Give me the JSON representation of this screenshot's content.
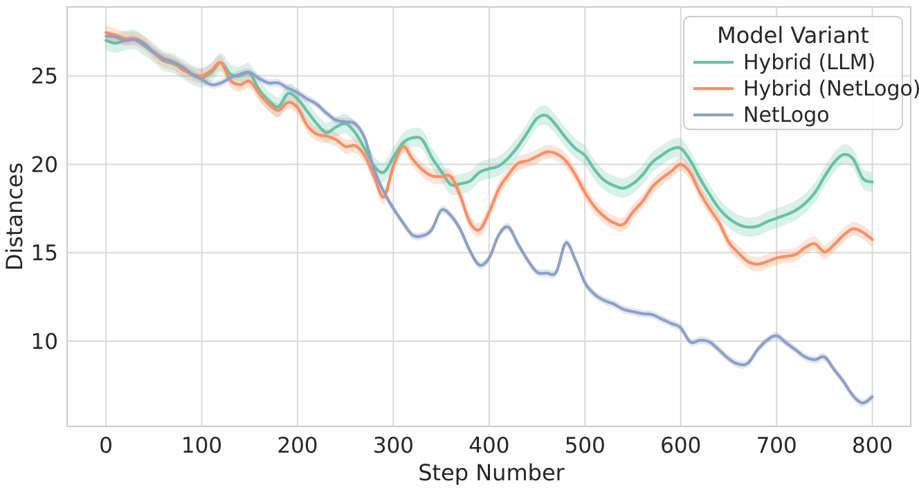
{
  "chart_data": {
    "type": "line",
    "title": "",
    "xlabel": "Step Number",
    "ylabel": "Distances",
    "grid": true,
    "legend": {
      "title": "Model Variant",
      "position": "upper right"
    },
    "x_ticks": [
      0,
      100,
      200,
      300,
      400,
      500,
      600,
      700,
      800
    ],
    "y_ticks": [
      10,
      15,
      20,
      25
    ],
    "xlim": [
      -40.5,
      840
    ],
    "ylim": [
      5.18,
      28.9
    ],
    "x": [
      0,
      10,
      20,
      30,
      40,
      50,
      60,
      70,
      80,
      90,
      100,
      110,
      120,
      130,
      140,
      150,
      160,
      170,
      180,
      190,
      200,
      210,
      220,
      230,
      240,
      250,
      260,
      270,
      280,
      290,
      300,
      310,
      320,
      330,
      340,
      350,
      360,
      370,
      380,
      390,
      400,
      410,
      420,
      430,
      440,
      450,
      460,
      470,
      480,
      490,
      500,
      510,
      520,
      530,
      540,
      550,
      560,
      570,
      580,
      590,
      600,
      610,
      620,
      630,
      640,
      650,
      660,
      670,
      680,
      690,
      700,
      710,
      720,
      730,
      740,
      750,
      760,
      770,
      780,
      790,
      800
    ],
    "series": [
      {
        "name": "Hybrid (LLM)",
        "color": "#66c2a5",
        "band_halfwidth": 0.55,
        "values": [
          27.0,
          26.85,
          27.0,
          27.05,
          26.7,
          26.3,
          25.85,
          25.7,
          25.4,
          25.05,
          24.9,
          25.2,
          25.75,
          25.1,
          25.0,
          25.15,
          24.2,
          23.6,
          23.25,
          24.0,
          23.7,
          23.0,
          22.3,
          21.8,
          22.1,
          22.3,
          21.8,
          20.9,
          19.9,
          19.55,
          20.4,
          21.2,
          21.5,
          21.4,
          20.4,
          19.6,
          18.85,
          18.9,
          19.05,
          19.55,
          19.75,
          19.9,
          20.35,
          21.0,
          21.8,
          22.6,
          22.75,
          22.2,
          21.5,
          20.9,
          20.5,
          19.7,
          19.1,
          18.8,
          18.65,
          18.9,
          19.4,
          20.1,
          20.5,
          20.85,
          20.9,
          20.2,
          19.2,
          18.3,
          17.5,
          16.95,
          16.6,
          16.45,
          16.5,
          16.75,
          16.95,
          17.15,
          17.4,
          17.8,
          18.4,
          19.3,
          20.1,
          20.55,
          20.3,
          19.2,
          19.0
        ]
      },
      {
        "name": "Hybrid (NetLogo)",
        "color": "#fc8d62",
        "band_halfwidth": 0.4,
        "values": [
          27.45,
          27.3,
          27.1,
          27.1,
          26.85,
          26.3,
          25.9,
          25.75,
          25.35,
          25.1,
          25.0,
          25.3,
          25.75,
          24.75,
          24.5,
          24.7,
          24.0,
          23.4,
          23.05,
          23.5,
          23.2,
          22.2,
          21.7,
          21.6,
          21.4,
          21.0,
          21.05,
          20.5,
          19.3,
          18.15,
          19.9,
          21.0,
          20.3,
          19.7,
          19.35,
          19.3,
          19.3,
          18.2,
          16.7,
          16.3,
          17.3,
          18.6,
          19.4,
          20.05,
          20.2,
          20.45,
          20.7,
          20.6,
          20.2,
          19.4,
          18.4,
          17.6,
          17.05,
          16.7,
          16.6,
          17.3,
          17.9,
          18.7,
          19.2,
          19.6,
          20.0,
          19.5,
          18.4,
          17.5,
          16.7,
          15.6,
          15.0,
          14.5,
          14.35,
          14.5,
          14.7,
          14.8,
          14.9,
          15.3,
          15.5,
          15.05,
          15.45,
          16.0,
          16.35,
          16.15,
          15.75
        ]
      },
      {
        "name": "NetLogo",
        "color": "#8da0cb",
        "band_halfwidth": 0.22,
        "values": [
          27.25,
          27.2,
          27.0,
          27.05,
          26.8,
          26.35,
          26.0,
          25.8,
          25.5,
          25.1,
          24.8,
          24.5,
          24.6,
          24.9,
          25.1,
          25.2,
          24.85,
          24.6,
          24.6,
          24.3,
          24.05,
          23.7,
          23.4,
          22.9,
          22.5,
          22.4,
          22.3,
          21.5,
          19.7,
          18.45,
          17.5,
          16.7,
          16.0,
          15.95,
          16.3,
          17.4,
          17.1,
          16.3,
          15.1,
          14.3,
          14.7,
          16.0,
          16.45,
          15.5,
          14.6,
          13.9,
          13.85,
          13.9,
          15.55,
          14.6,
          13.3,
          12.65,
          12.3,
          12.1,
          11.8,
          11.67,
          11.55,
          11.5,
          11.25,
          11.0,
          10.75,
          9.95,
          10.05,
          9.95,
          9.5,
          9.0,
          8.7,
          8.75,
          9.5,
          10.05,
          10.3,
          9.9,
          9.5,
          9.1,
          8.95,
          9.1,
          8.4,
          7.7,
          6.9,
          6.5,
          6.85
        ]
      }
    ],
    "style": {
      "grid_color": "#d9d9d9",
      "spine_color": "#cccccc",
      "text_color": "#262626",
      "band_opacity": 0.24,
      "line_width": 4.2
    }
  }
}
